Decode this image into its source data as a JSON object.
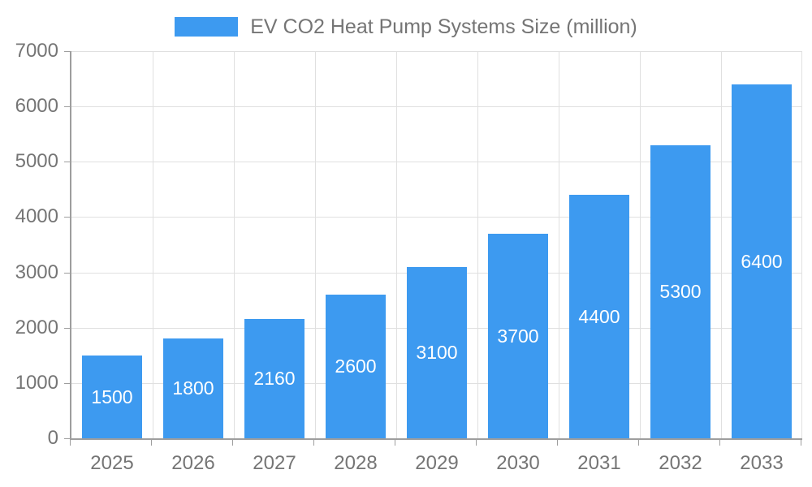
{
  "legend": {
    "label": "EV CO2 Heat Pump Systems Size (million)"
  },
  "chart_data": {
    "type": "bar",
    "title": "EV CO2 Heat Pump Systems Size (million)",
    "categories": [
      "2025",
      "2026",
      "2027",
      "2028",
      "2029",
      "2030",
      "2031",
      "2032",
      "2033"
    ],
    "values": [
      1500,
      1800,
      2160,
      2600,
      3100,
      3700,
      4400,
      5300,
      6400
    ],
    "bar_labels": [
      "1500",
      "1800",
      "2160",
      "2600",
      "3100",
      "3700",
      "4400",
      "5300",
      "6400"
    ],
    "xlabel": "",
    "ylabel": "",
    "ylim": [
      0,
      7000
    ],
    "yticks": [
      0,
      1000,
      2000,
      3000,
      4000,
      5000,
      6000,
      7000
    ],
    "grid": true,
    "legend_position": "top-center",
    "colors": {
      "bar": "#3D9AF0",
      "bar_label_text": "#FFFFFF",
      "axis_line": "#9E9E9E",
      "grid_line": "#E0E0E0",
      "axis_text": "#757575",
      "legend_text": "#757575"
    }
  }
}
